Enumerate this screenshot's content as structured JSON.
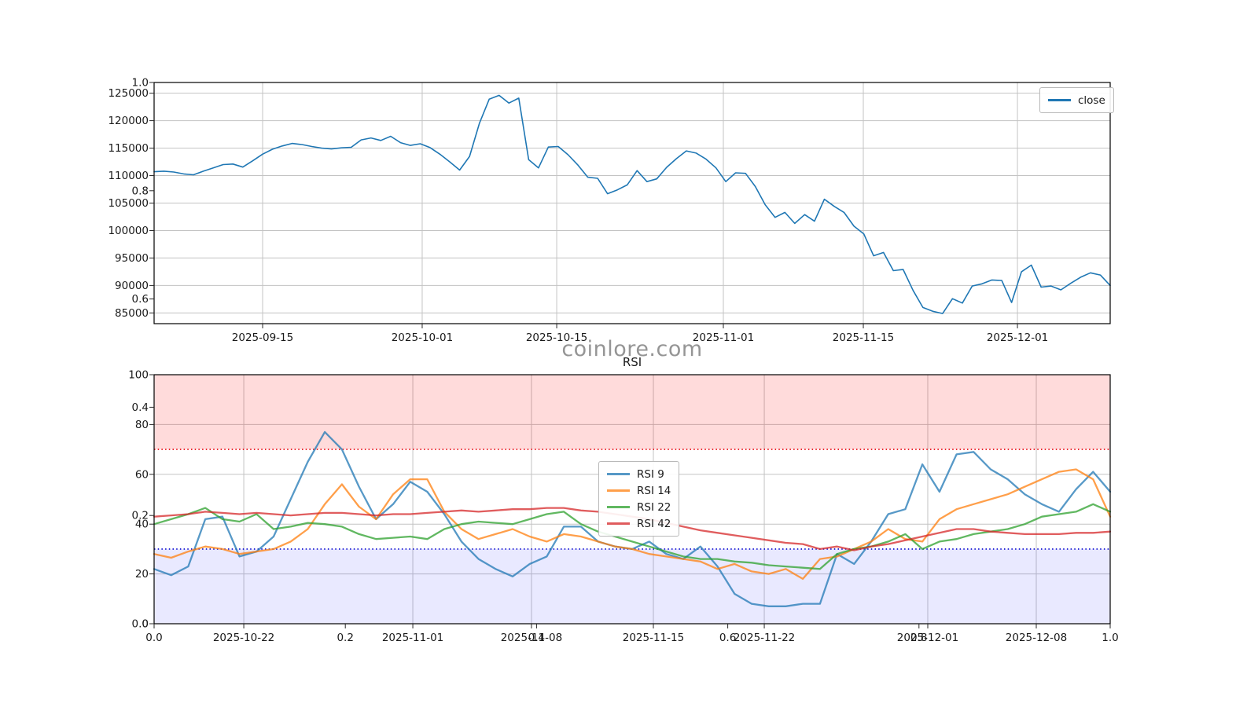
{
  "watermark": "coinlore.com",
  "hidden_axis": {
    "y_labels": [
      "1.0",
      "0.8",
      "0.6",
      "0.4",
      "0.2",
      "0.0"
    ],
    "x_labels": [
      "0.0",
      "0.2",
      "0.4",
      "0.6",
      "0.8",
      "1.0"
    ]
  },
  "chart_data": [
    {
      "type": "line",
      "title": "",
      "xlabel": "",
      "ylabel": "",
      "legend_position": "upper right",
      "grid": true,
      "x_tick_labels": [
        "2025-09-15",
        "2025-10-01",
        "2025-10-15",
        "2025-11-01",
        "2025-11-15",
        "2025-12-01"
      ],
      "x_tick_pos": [
        0.1135,
        0.2804,
        0.4211,
        0.5954,
        0.7418,
        0.903
      ],
      "y_ticks": [
        85000,
        90000,
        95000,
        100000,
        105000,
        110000,
        115000,
        120000,
        125000
      ],
      "ylim": [
        83050,
        126950
      ],
      "series": [
        {
          "name": "close",
          "color": "#1f77b4",
          "width": 1.6,
          "opacity": 1,
          "values": [
            110700,
            110800,
            110650,
            110300,
            110150,
            110800,
            111400,
            112000,
            112100,
            111550,
            112700,
            113900,
            114800,
            115400,
            115850,
            115650,
            115300,
            115000,
            114850,
            115050,
            115150,
            116500,
            116850,
            116400,
            117150,
            116000,
            115500,
            115800,
            115100,
            113900,
            112500,
            111000,
            113500,
            119500,
            123900,
            124600,
            123200,
            124100,
            112900,
            111400,
            115200,
            115300,
            113800,
            111900,
            109700,
            109500,
            106700,
            107400,
            108300,
            110900,
            108900,
            109400,
            111500,
            113100,
            114500,
            114100,
            113000,
            111400,
            108900,
            110500,
            110400,
            108000,
            104700,
            102400,
            103300,
            101300,
            102900,
            101700,
            105700,
            104400,
            103300,
            100800,
            99400,
            95400,
            96000,
            92700,
            92900,
            89100,
            86000,
            85300,
            84900,
            87600,
            86800,
            89900,
            90300,
            91000,
            90900,
            86900,
            92500,
            93700,
            89700,
            89900,
            89200,
            90400,
            91500,
            92300,
            91900,
            90000
          ]
        }
      ]
    },
    {
      "type": "line",
      "title": "RSI",
      "xlabel": "",
      "ylabel": "",
      "legend_position": "center left",
      "grid": true,
      "x_tick_labels": [
        "2025-10-22",
        "2025-11-01",
        "2025-11-08",
        "2025-11-15",
        "2025-11-22",
        "2025-12-01",
        "2025-12-08"
      ],
      "x_tick_pos": [
        0.0938,
        0.2706,
        0.3947,
        0.5222,
        0.6382,
        0.8092,
        0.9227
      ],
      "y_ticks": [
        0,
        20,
        40,
        60,
        80,
        100
      ],
      "ylim": [
        0,
        100
      ],
      "bands": [
        {
          "from": 70,
          "to": 100,
          "color": "rgba(255,0,0,0.14)",
          "name": "overbought-band"
        },
        {
          "from": 0,
          "to": 30,
          "color": "rgba(70,70,255,0.12)",
          "name": "oversold-band"
        }
      ],
      "hlines": [
        {
          "y": 70,
          "color": "#e8000b"
        },
        {
          "y": 30,
          "color": "#0000cd"
        }
      ],
      "series": [
        {
          "name": "RSI 9",
          "color": "#1f77b4",
          "width": 2.3,
          "opacity": 0.75,
          "values": [
            22,
            19.5,
            23,
            42,
            43,
            27,
            29,
            35,
            50,
            65,
            77,
            70,
            55,
            42,
            48,
            57,
            53,
            44,
            33,
            26,
            22,
            19,
            24,
            27,
            39,
            39,
            33,
            31,
            30,
            33,
            28,
            26,
            31,
            23,
            12,
            8,
            7,
            7,
            8,
            8,
            28,
            24,
            33,
            44,
            46,
            64,
            53,
            68,
            69,
            62,
            58,
            52,
            48,
            45,
            54,
            61,
            53
          ]
        },
        {
          "name": "RSI 14",
          "color": "#ff7f0e",
          "width": 2.3,
          "opacity": 0.75,
          "values": [
            28,
            26.5,
            29,
            31,
            30,
            28,
            29,
            30,
            33,
            38,
            48,
            56,
            47,
            42,
            52,
            58,
            58,
            45,
            38,
            34,
            36,
            38,
            35,
            33,
            36,
            35,
            33,
            31,
            30,
            28,
            27,
            26,
            25,
            22,
            24,
            21,
            20,
            22,
            18,
            26,
            27,
            30,
            33,
            38,
            34,
            33,
            42,
            46,
            48,
            50,
            52,
            55,
            58,
            61,
            62,
            58,
            43
          ]
        },
        {
          "name": "RSI 22",
          "color": "#2ca02c",
          "width": 2.3,
          "opacity": 0.75,
          "values": [
            40,
            42,
            44,
            46.5,
            42,
            41,
            44,
            38,
            39,
            40.5,
            40,
            39,
            36,
            34,
            34.5,
            35,
            34,
            38,
            40,
            41,
            40.5,
            40,
            42,
            44,
            45,
            40,
            37,
            35,
            33,
            31,
            29,
            27,
            26,
            26,
            25,
            24.5,
            23.5,
            23,
            22.5,
            22,
            28,
            30,
            31,
            33,
            36,
            30,
            33,
            34,
            36,
            37,
            38,
            40,
            43,
            44,
            45,
            48,
            45
          ]
        },
        {
          "name": "RSI 42",
          "color": "#d62728",
          "width": 2.3,
          "opacity": 0.75,
          "values": [
            43,
            43.5,
            44,
            45,
            44.5,
            44,
            44.5,
            44,
            43.5,
            44,
            44.5,
            44.5,
            44,
            43.5,
            44,
            44,
            44.5,
            45,
            45.5,
            45,
            45.5,
            46,
            46,
            46.5,
            46.5,
            45.5,
            45,
            44,
            43,
            42,
            40.5,
            39,
            37.5,
            36.5,
            35.5,
            34.5,
            33.5,
            32.5,
            32,
            30,
            31,
            29.5,
            31,
            32,
            33.5,
            35,
            36.5,
            38,
            38,
            37,
            36.5,
            36,
            36,
            36,
            36.5,
            36.5,
            37
          ]
        }
      ]
    }
  ]
}
